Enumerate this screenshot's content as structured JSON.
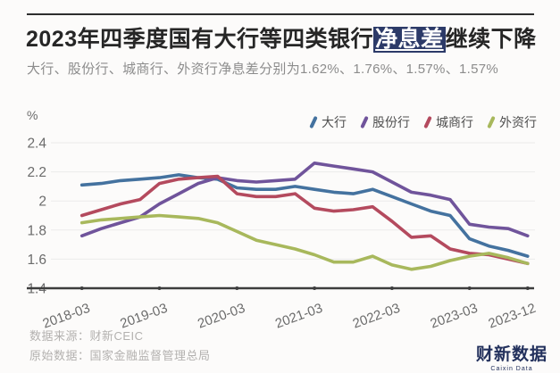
{
  "header": {
    "title_pre": "2023年四季度国有大行等四类银行",
    "title_highlight": "净息差",
    "title_post": "继续下降",
    "subtitle": "大行、股份行、城商行、外资行净息差分别为1.62%、1.76%、1.57%、1.57%"
  },
  "chart_data": {
    "type": "line",
    "unit_label": "%",
    "grid": "horizontal",
    "legend_position": "top-right",
    "ylim": [
      1.4,
      2.45
    ],
    "yticks": [
      [
        2.4,
        "2.4"
      ],
      [
        2.2,
        "2.2"
      ],
      [
        2.0,
        "2"
      ],
      [
        1.8,
        "1.8"
      ],
      [
        1.6,
        "1.6"
      ],
      [
        1.4,
        "1.4"
      ]
    ],
    "categories": [
      "2018-03",
      "2018-06",
      "2018-09",
      "2018-12",
      "2019-03",
      "2019-06",
      "2019-09",
      "2019-12",
      "2020-03",
      "2020-06",
      "2020-09",
      "2020-12",
      "2021-03",
      "2021-06",
      "2021-09",
      "2021-12",
      "2022-03",
      "2022-06",
      "2022-09",
      "2022-12",
      "2023-03",
      "2023-06",
      "2023-09",
      "2023-12"
    ],
    "x_ticks": [
      {
        "index": 0,
        "label": "2018-03"
      },
      {
        "index": 4,
        "label": "2019-03"
      },
      {
        "index": 8,
        "label": "2020-03"
      },
      {
        "index": 12,
        "label": "2021-03"
      },
      {
        "index": 16,
        "label": "2022-03"
      },
      {
        "index": 20,
        "label": "2023-03"
      },
      {
        "index": 23,
        "label": "2023-12"
      }
    ],
    "series": [
      {
        "name": "大行",
        "color": "#44729f",
        "values": [
          2.11,
          2.12,
          2.14,
          2.15,
          2.16,
          2.18,
          2.16,
          2.15,
          2.09,
          2.08,
          2.08,
          2.1,
          2.08,
          2.06,
          2.05,
          2.08,
          2.03,
          1.98,
          1.93,
          1.9,
          1.74,
          1.69,
          1.66,
          1.62
        ]
      },
      {
        "name": "股份行",
        "color": "#70549b",
        "values": [
          1.76,
          1.81,
          1.85,
          1.89,
          1.98,
          2.05,
          2.12,
          2.16,
          2.14,
          2.13,
          2.14,
          2.15,
          2.26,
          2.24,
          2.22,
          2.2,
          2.13,
          2.06,
          2.04,
          2.01,
          1.84,
          1.82,
          1.81,
          1.76
        ]
      },
      {
        "name": "城商行",
        "color": "#b44a5e",
        "values": [
          1.9,
          1.94,
          1.98,
          2.01,
          2.12,
          2.15,
          2.16,
          2.17,
          2.05,
          2.03,
          2.03,
          2.05,
          1.95,
          1.93,
          1.94,
          1.96,
          1.86,
          1.75,
          1.76,
          1.67,
          1.64,
          1.63,
          1.6,
          1.57
        ]
      },
      {
        "name": "外资行",
        "color": "#a8b85c",
        "values": [
          1.85,
          1.87,
          1.88,
          1.89,
          1.9,
          1.89,
          1.88,
          1.85,
          1.79,
          1.73,
          1.7,
          1.67,
          1.63,
          1.58,
          1.58,
          1.62,
          1.56,
          1.53,
          1.55,
          1.59,
          1.62,
          1.64,
          1.61,
          1.57
        ]
      }
    ]
  },
  "footer": {
    "source_line1": "数据来源：财新CEIC",
    "source_line2": "原始数据：国家金融监督管理总局",
    "logo_text": "财新数据",
    "logo_subtext": "Caixin Data"
  }
}
